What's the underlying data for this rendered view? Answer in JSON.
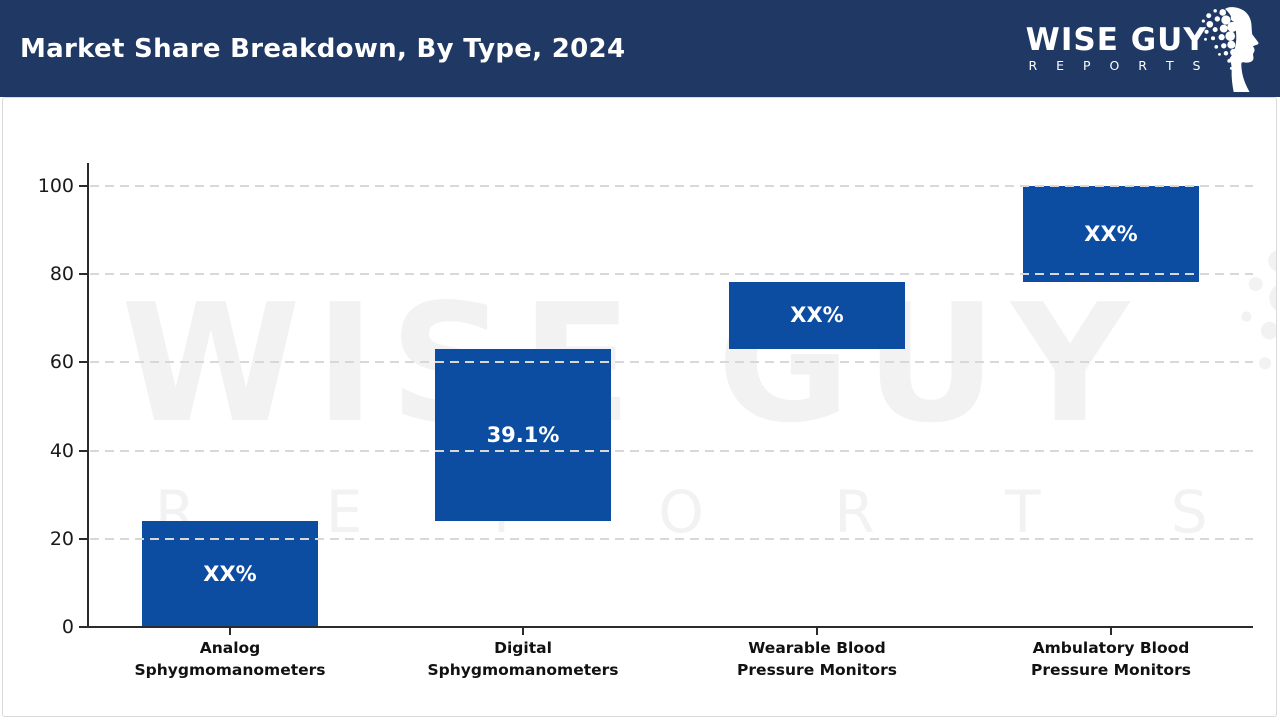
{
  "header": {
    "title": "Market Share Breakdown, By Type, 2024",
    "bg_color": "#1f3864",
    "logo": {
      "wordmark": "WISE GUY",
      "subtitle": "R E P O R T S"
    }
  },
  "watermark": {
    "wordmark": "WISE GUY",
    "subtitle": "R E P O R T S"
  },
  "chart_data": {
    "type": "bar",
    "variant": "waterfall",
    "title": "Market Share Breakdown, By Type, 2024",
    "xlabel": "",
    "ylabel": "",
    "ylim": [
      0,
      100
    ],
    "yticks": [
      0,
      20,
      40,
      60,
      80,
      100
    ],
    "grid": "horizontal dashed, drawn over bars",
    "legend": "none",
    "bar_color": "#0c4da2",
    "bar_label_color": "#ffffff",
    "categories": [
      [
        "Analog",
        "Sphygmomanometers"
      ],
      [
        "Digital",
        "Sphygmomanometers"
      ],
      [
        "Wearable Blood",
        "Pressure Monitors"
      ],
      [
        "Ambulatory Blood",
        "Pressure Monitors"
      ]
    ],
    "bars": [
      {
        "label": "XX%",
        "value": 24.0,
        "base": 0,
        "top": 24.0
      },
      {
        "label": "39.1%",
        "value": 39.1,
        "base": 24.0,
        "top": 63.1
      },
      {
        "label": "XX%",
        "value": 15.1,
        "base": 63.1,
        "top": 78.2
      },
      {
        "label": "XX%",
        "value": 21.8,
        "base": 78.2,
        "top": 100.0
      }
    ]
  }
}
